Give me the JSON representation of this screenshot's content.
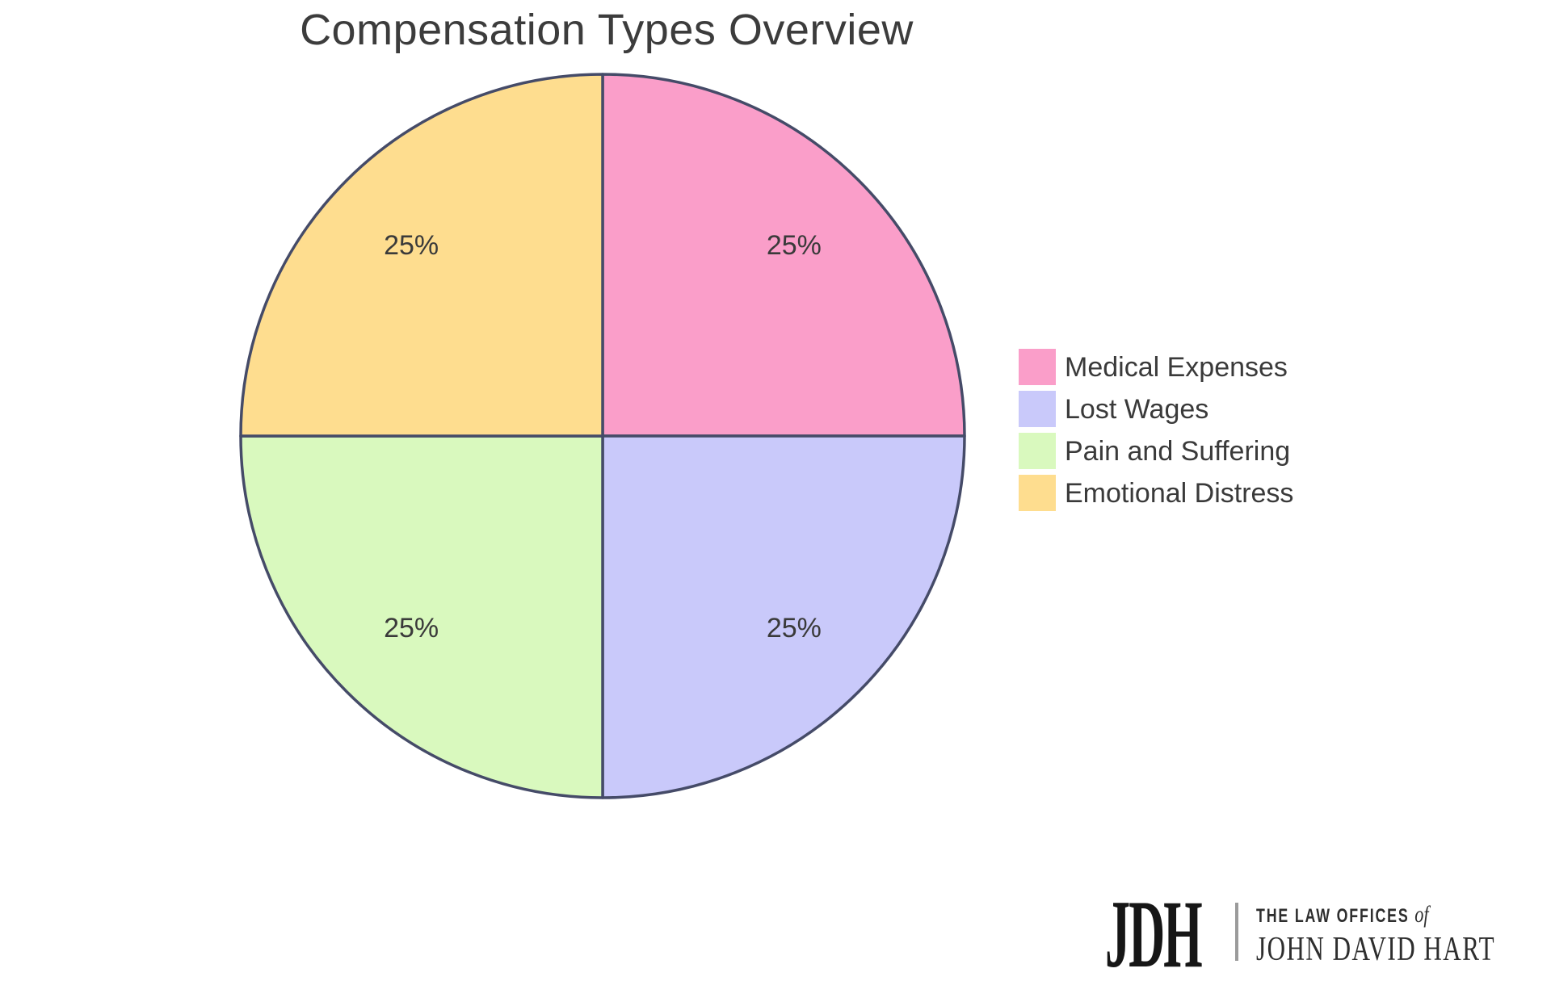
{
  "chart_data": {
    "type": "pie",
    "title": "Compensation Types Overview",
    "categories": [
      "Medical Expenses",
      "Lost Wages",
      "Pain and Suffering",
      "Emotional Distress"
    ],
    "values": [
      25,
      25,
      25,
      25
    ],
    "slice_labels": [
      "25%",
      "25%",
      "25%",
      "25%"
    ],
    "colors": [
      "#FA9EC9",
      "#C9C9FA",
      "#D9F9BE",
      "#FEDD8F"
    ],
    "stroke_color": "#454B68",
    "label_color": "#3A3A3A",
    "start_angle_deg": 0,
    "direction": "clockwise",
    "legend_position": "right",
    "background": "#FFFFFF"
  },
  "branding": {
    "monogram": "JDH",
    "tagline_prefix": "THE LAW OFFICES",
    "tagline_of": "of",
    "firm_name": "JOHN DAVID HART"
  }
}
